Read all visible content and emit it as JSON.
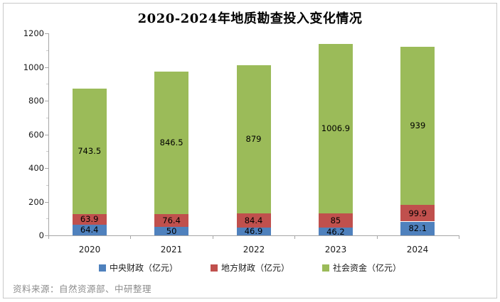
{
  "title": "2020-2024年地质勘查投入变化情况",
  "source_note": "资料来源：自然资源部、中研整理",
  "colors": {
    "central_blue": "#4F81BD",
    "local_red": "#C0504D",
    "social_green": "#9BBB59",
    "axis_gray": "#a6a6a6",
    "border_gray": "#c9c9c9",
    "note_gray": "#8c8c8c"
  },
  "chart_data": {
    "type": "bar",
    "stacked": true,
    "title": "2020-2024年地质勘查投入变化情况",
    "categories": [
      "2020",
      "2021",
      "2022",
      "2023",
      "2024"
    ],
    "series": [
      {
        "name": "中央财政（亿元）",
        "color": "#4F81BD",
        "values": [
          64.4,
          50,
          46.9,
          46.2,
          82.1
        ]
      },
      {
        "name": "地方财政（亿元）",
        "color": "#C0504D",
        "values": [
          63.9,
          76.4,
          84.4,
          85,
          99.9
        ]
      },
      {
        "name": "社会资金（亿元）",
        "color": "#9BBB59",
        "values": [
          743.5,
          846.5,
          879,
          1006.9,
          939
        ]
      }
    ],
    "xlabel": "",
    "ylabel": "",
    "ylim": [
      0,
      1200
    ],
    "yticks": [
      0,
      200,
      400,
      600,
      800,
      1000,
      1200
    ],
    "ytick_minor_step": 100,
    "grid": false,
    "legend_position": "bottom",
    "data_labels": "center"
  }
}
